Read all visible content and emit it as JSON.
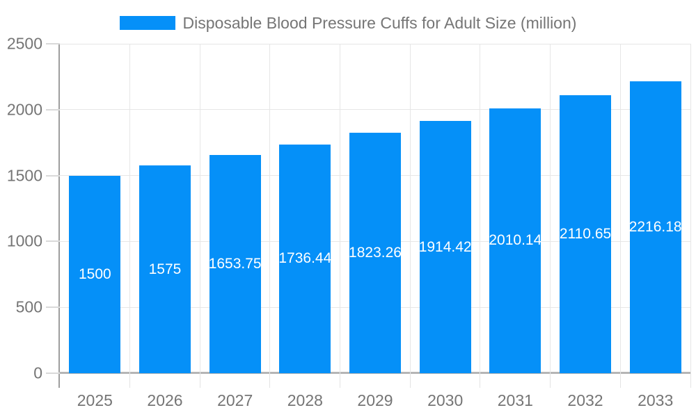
{
  "chart_data": {
    "type": "bar",
    "title": "Disposable Blood Pressure Cuffs for Adult Size (million)",
    "legend_position": "top",
    "legend": [
      "Disposable Blood Pressure Cuffs for Adult Size (million)"
    ],
    "categories": [
      "2025",
      "2026",
      "2027",
      "2028",
      "2029",
      "2030",
      "2031",
      "2032",
      "2033"
    ],
    "series": [
      {
        "name": "Disposable Blood Pressure Cuffs for Adult Size (million)",
        "values": [
          1500,
          1575,
          1653.75,
          1736.44,
          1823.26,
          1914.42,
          2010.14,
          2110.65,
          2216.18
        ],
        "value_labels": [
          "1500",
          "1575",
          "1653.75",
          "1736.44",
          "1823.26",
          "1914.42",
          "2010.14",
          "2110.65",
          "2216.18"
        ]
      }
    ],
    "xlabel": "",
    "ylabel": "",
    "ylim": [
      0,
      2500
    ],
    "y_ticks": [
      0,
      500,
      1000,
      1500,
      2000,
      2500
    ],
    "y_tick_labels": [
      "0",
      "500",
      "1000",
      "1500",
      "2000",
      "2500"
    ],
    "grid": true,
    "colors": {
      "bar": "#0590f8",
      "value_label": "#ffffff",
      "axis_text": "#757575",
      "grid_line": "#e6e6e6",
      "x_axis_line": "#b5b5b5",
      "y_axis_line": "#9e9e9e",
      "tick": "#d9d9d9"
    }
  }
}
